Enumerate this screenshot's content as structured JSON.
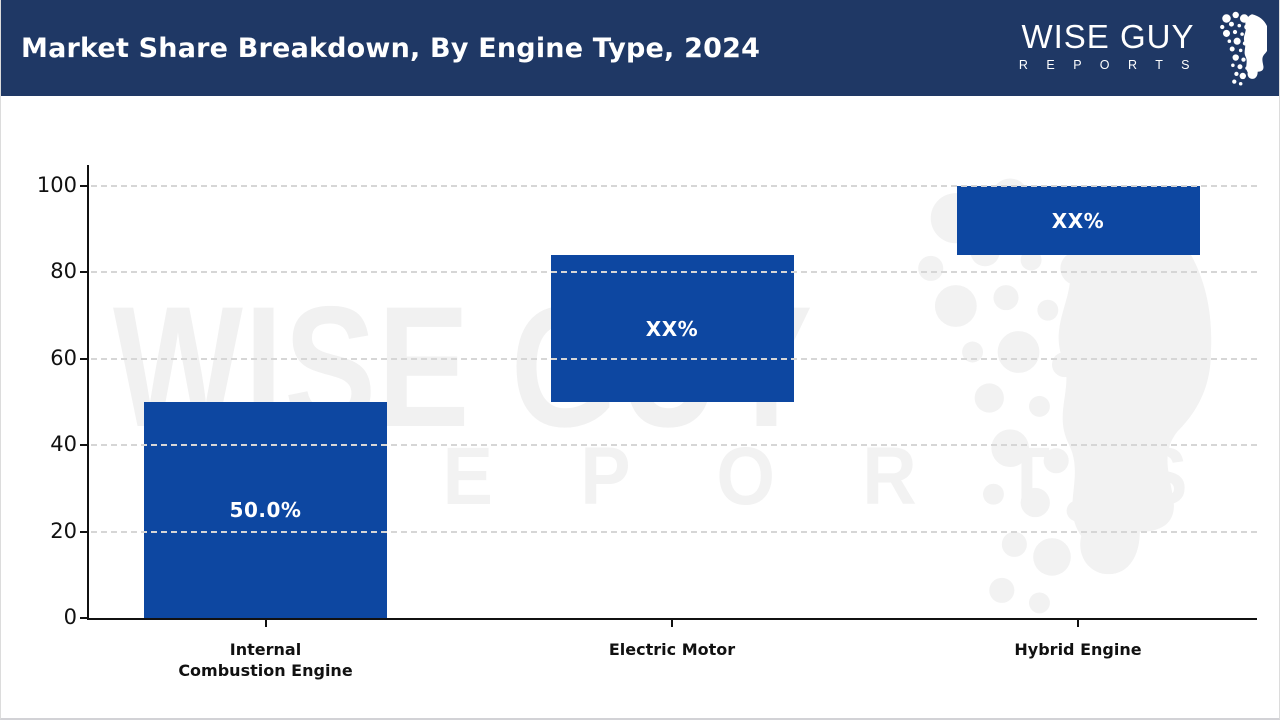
{
  "header": {
    "title": "Market Share Breakdown, By Engine Type, 2024",
    "bg_color": "#1F3865",
    "logo": {
      "alt": "Wise Guy Reports",
      "line1": "WISE GUY",
      "line2": "R E P O R T S"
    }
  },
  "watermark": {
    "line1": "WISE GUY",
    "line2": "R E P O R T S"
  },
  "chart_data": {
    "type": "bar",
    "subtype": "waterfall",
    "title": "Market Share Breakdown, By Engine Type, 2024",
    "categories": [
      "Internal Combustion Engine",
      "Electric Motor",
      "Hybrid Engine"
    ],
    "category_lines": [
      [
        "Internal",
        "Combustion Engine"
      ],
      [
        "Electric Motor"
      ],
      [
        "Hybrid Engine"
      ]
    ],
    "segments": [
      {
        "category": "Internal Combustion Engine",
        "start": 0,
        "end": 50,
        "label": "50.0%"
      },
      {
        "category": "Electric Motor",
        "start": 50,
        "end": 84,
        "label": "XX%"
      },
      {
        "category": "Hybrid Engine",
        "start": 84,
        "end": 100,
        "label": "XX%"
      }
    ],
    "ylim": [
      0,
      103
    ],
    "yticks": [
      0,
      20,
      40,
      60,
      80,
      100
    ],
    "xlabel": "",
    "ylabel": "",
    "grid": "dashed-horizontal",
    "legend": "none",
    "bar_color": "#0D47A1",
    "bar_label_color": "#FFFFFF",
    "axis_color": "#111111",
    "gridline_color": "#D6D6D6"
  }
}
